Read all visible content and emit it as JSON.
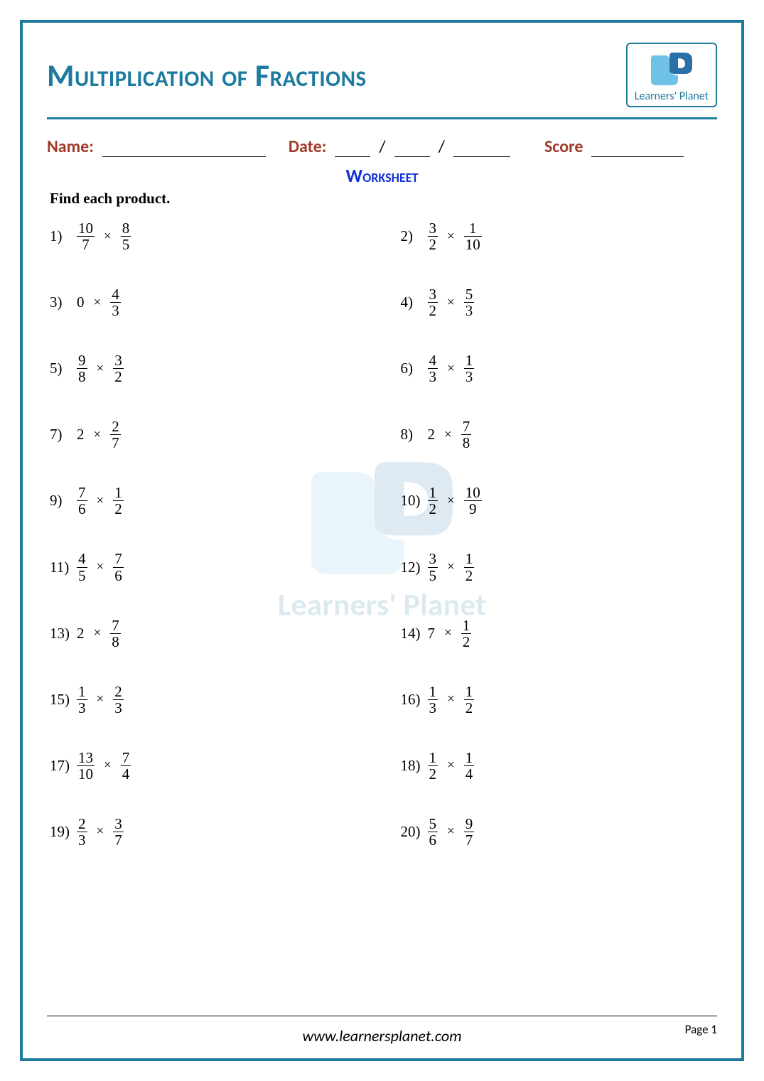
{
  "colors": {
    "primary": "#1e7a9e",
    "accent": "#a03a2a",
    "blue_text": "#1030d8",
    "text": "#000000",
    "background": "#ffffff"
  },
  "typography": {
    "title_font": "Calibri",
    "body_font": "Times New Roman",
    "title_size_pt": 32,
    "body_size_pt": 16
  },
  "header": {
    "title": "Multiplication of Fractions",
    "logo_text": "Learners' Planet"
  },
  "meta": {
    "name_label": "Name:",
    "date_label": "Date:",
    "date_sep": "/",
    "score_label": "Score"
  },
  "subtitle": "Worksheet",
  "instruction": "Find each product.",
  "watermark_text": "Learners' Planet",
  "problems": [
    {
      "n": "1)",
      "a": {
        "num": "10",
        "den": "7"
      },
      "b": {
        "num": "8",
        "den": "5"
      }
    },
    {
      "n": "2)",
      "a": {
        "num": "3",
        "den": "2"
      },
      "b": {
        "num": "1",
        "den": "10"
      }
    },
    {
      "n": "3)",
      "a": {
        "whole": "0"
      },
      "b": {
        "num": "4",
        "den": "3"
      }
    },
    {
      "n": "4)",
      "a": {
        "num": "3",
        "den": "2"
      },
      "b": {
        "num": "5",
        "den": "3"
      }
    },
    {
      "n": "5)",
      "a": {
        "num": "9",
        "den": "8"
      },
      "b": {
        "num": "3",
        "den": "2"
      }
    },
    {
      "n": "6)",
      "a": {
        "num": "4",
        "den": "3"
      },
      "b": {
        "num": "1",
        "den": "3"
      }
    },
    {
      "n": "7)",
      "a": {
        "whole": "2"
      },
      "b": {
        "num": "2",
        "den": "7"
      }
    },
    {
      "n": "8)",
      "a": {
        "whole": "2"
      },
      "b": {
        "num": "7",
        "den": "8"
      }
    },
    {
      "n": "9)",
      "a": {
        "num": "7",
        "den": "6"
      },
      "b": {
        "num": "1",
        "den": "2"
      }
    },
    {
      "n": "10)",
      "a": {
        "num": "1",
        "den": "2"
      },
      "b": {
        "num": "10",
        "den": "9"
      }
    },
    {
      "n": "11)",
      "a": {
        "num": "4",
        "den": "5"
      },
      "b": {
        "num": "7",
        "den": "6"
      }
    },
    {
      "n": "12)",
      "a": {
        "num": "3",
        "den": "5"
      },
      "b": {
        "num": "1",
        "den": "2"
      }
    },
    {
      "n": "13)",
      "a": {
        "whole": "2"
      },
      "b": {
        "num": "7",
        "den": "8"
      }
    },
    {
      "n": "14)",
      "a": {
        "whole": "7"
      },
      "b": {
        "num": "1",
        "den": "2"
      }
    },
    {
      "n": "15)",
      "a": {
        "num": "1",
        "den": "3"
      },
      "b": {
        "num": "2",
        "den": "3"
      }
    },
    {
      "n": "16)",
      "a": {
        "num": "1",
        "den": "3"
      },
      "b": {
        "num": "1",
        "den": "2"
      }
    },
    {
      "n": "17)",
      "a": {
        "num": "13",
        "den": "10"
      },
      "b": {
        "num": "7",
        "den": "4"
      }
    },
    {
      "n": "18)",
      "a": {
        "num": "1",
        "den": "2"
      },
      "b": {
        "num": "1",
        "den": "4"
      }
    },
    {
      "n": "19)",
      "a": {
        "num": "2",
        "den": "3"
      },
      "b": {
        "num": "3",
        "den": "7"
      }
    },
    {
      "n": "20)",
      "a": {
        "num": "5",
        "den": "6"
      },
      "b": {
        "num": "9",
        "den": "7"
      }
    }
  ],
  "footer": {
    "url": "www.learnersplanet.com",
    "page": "Page 1"
  }
}
